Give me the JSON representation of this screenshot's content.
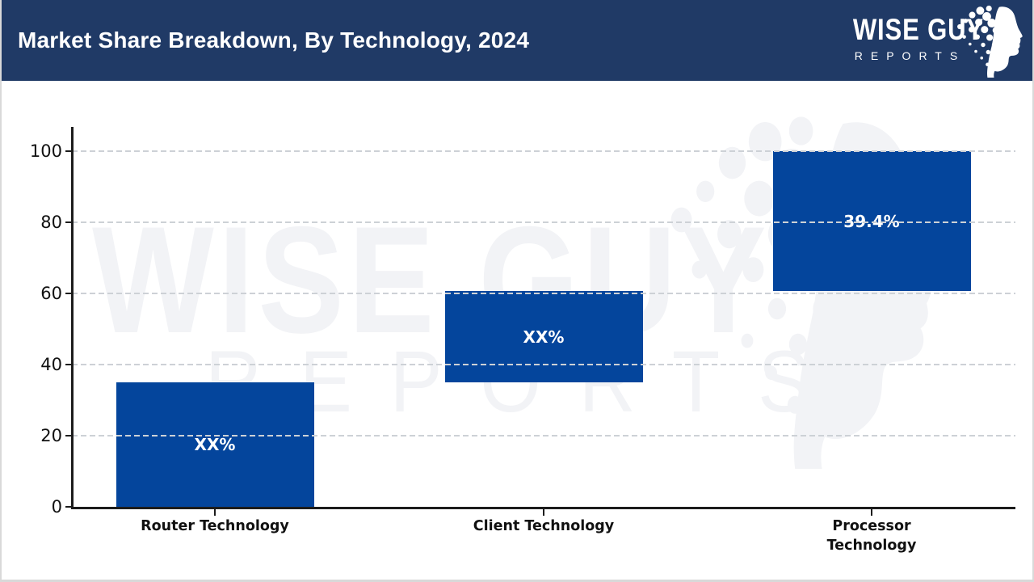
{
  "header": {
    "title": "Market Share Breakdown, By Technology, 2024"
  },
  "logo": {
    "line1": "WISE GUY",
    "line2": "REPORTS"
  },
  "watermark": {
    "line1": "WISE GUY",
    "line2": "REPORTS"
  },
  "colors": {
    "header_bg": "#203a66",
    "bar": "#04459c",
    "bar_label": "#ffffff",
    "axis": "#1c1c1c",
    "grid": "#cdd1d6",
    "watermark": "#f2f3f6",
    "page_border": "#d9d9d9"
  },
  "chart_data": {
    "type": "bar",
    "subtype": "waterfall",
    "title": "Market Share Breakdown, By Technology, 2024",
    "categories": [
      "Router Technology",
      "Client Technology",
      "Processor\nTechnology"
    ],
    "segments": [
      {
        "category": "Router Technology",
        "start": 0,
        "end": 35,
        "label": "XX%"
      },
      {
        "category": "Client Technology",
        "start": 35,
        "end": 60.6,
        "label": "XX%"
      },
      {
        "category": "Processor Technology",
        "start": 60.6,
        "end": 100,
        "label": "39.4%"
      }
    ],
    "xlabel": "",
    "ylabel": "",
    "yticks": [
      0,
      20,
      40,
      60,
      80,
      100
    ],
    "ylim": [
      0,
      106.8
    ],
    "grid": "horizontal-dashed-above-bars",
    "legend": "none",
    "bar_color": "#04459c"
  }
}
